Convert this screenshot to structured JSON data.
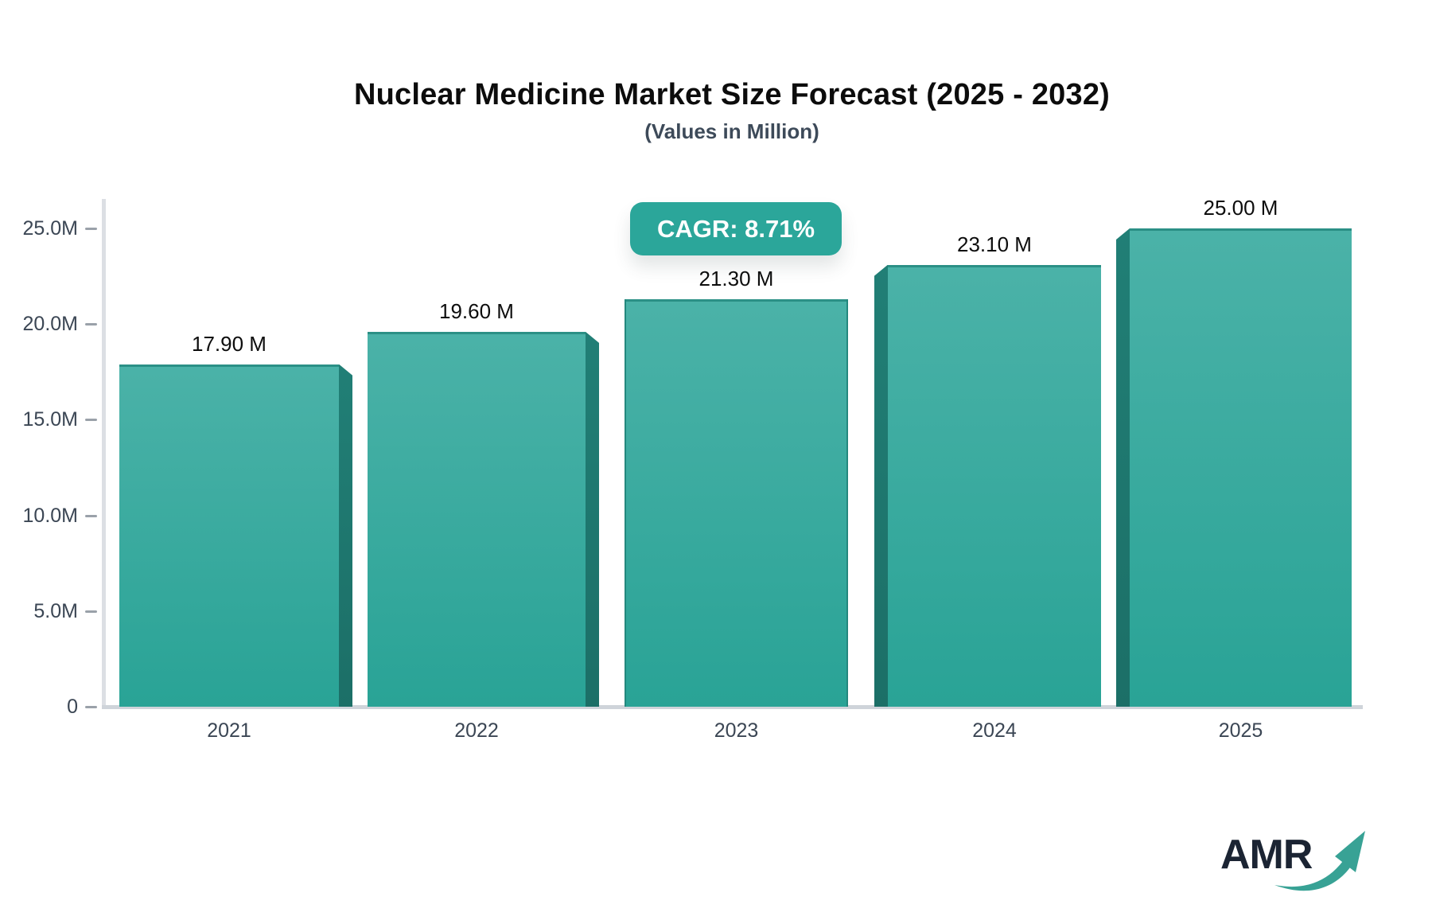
{
  "header": {
    "title": "Nuclear Medicine Market Size Forecast (2025 - 2032)",
    "subtitle": "(Values in Million)"
  },
  "cagr_badge": {
    "label": "CAGR: 8.71%",
    "bg_color": "#2ba69a"
  },
  "chart_data": {
    "type": "bar",
    "categories": [
      "2021",
      "2022",
      "2023",
      "2024",
      "2025"
    ],
    "values": [
      17.9,
      19.6,
      21.3,
      23.1,
      25.0
    ],
    "value_labels": [
      "17.90 M",
      "19.60 M",
      "21.30 M",
      "23.10 M",
      "25.00 M"
    ],
    "title": "Nuclear Medicine Market Size Forecast (2025 - 2032)",
    "subtitle": "(Values in Million)",
    "ylim": [
      0,
      25
    ],
    "ytick_values": [
      25,
      20,
      15,
      10,
      5,
      0
    ],
    "ytick_labels": [
      "25.0M",
      "20.0M",
      "15.0M",
      "10.0M",
      "5.0M",
      "0"
    ],
    "grid": false,
    "legend": false,
    "bar_style": {
      "face_top_color": "#4bb2a8",
      "face_bottom_color": "#29a396",
      "top_edge_color": "#2b9086",
      "side_top_color": "#217f76",
      "side_bottom_color": "#1c6f67",
      "center_bar_edge_color": "#24887e"
    }
  },
  "logo": {
    "text": "AMR",
    "text_color": "#1b2433",
    "arrow_color": "#38a295",
    "arrow_icon": "trend-up-arrow-icon"
  }
}
